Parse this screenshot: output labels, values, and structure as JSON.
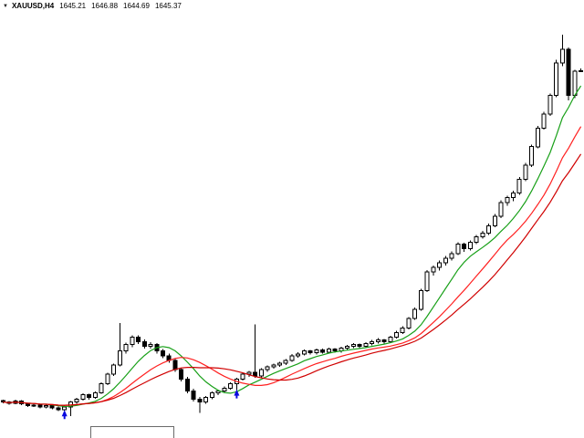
{
  "header": {
    "collapse_icon": "▼",
    "symbol_period": "XAUUSD,H4",
    "quote": {
      "open": "1645.21",
      "high": "1646.88",
      "low": "1644.69",
      "close": "1645.37"
    }
  },
  "colors": {
    "background": "#ffffff",
    "candle_outline": "#000000",
    "bull_fill": "#ffffff",
    "bear_fill": "#000000",
    "ma_fast": "#18a018",
    "ma_mid": "#ff2020",
    "ma_slow": "#d00000",
    "marker_blue": "#0a0adf"
  },
  "chart_data": {
    "type": "candlestick",
    "title": "XAUUSD H4 candlestick chart with moving averages",
    "symbol": "XAUUSD",
    "timeframe": "H4",
    "ylim": [
      1424,
      1688
    ],
    "grid": false,
    "legend": "none",
    "candle_color": "#000000",
    "bull_fill": "#ffffff",
    "bear_fill": "#000000",
    "candles": [
      [
        1446.5,
        1447.2,
        1444.8,
        1445.6
      ],
      [
        1445.6,
        1446.4,
        1444.2,
        1445.0
      ],
      [
        1445.0,
        1447.0,
        1444.4,
        1446.2
      ],
      [
        1446.2,
        1446.8,
        1443.8,
        1444.5
      ],
      [
        1444.5,
        1445.2,
        1442.6,
        1443.4
      ],
      [
        1443.4,
        1444.8,
        1442.8,
        1443.9
      ],
      [
        1443.9,
        1444.4,
        1441.9,
        1442.8
      ],
      [
        1442.8,
        1444.2,
        1442.0,
        1443.4
      ],
      [
        1443.4,
        1443.9,
        1441.3,
        1442.2
      ],
      [
        1442.2,
        1442.9,
        1440.2,
        1441.1
      ],
      [
        1441.1,
        1443.5,
        1440.4,
        1442.8
      ],
      [
        1442.8,
        1446.3,
        1437.2,
        1445.6
      ],
      [
        1445.6,
        1448.1,
        1444.6,
        1447.3
      ],
      [
        1447.3,
        1450.9,
        1446.5,
        1450.1
      ],
      [
        1450.1,
        1450.8,
        1447.2,
        1448.4
      ],
      [
        1448.4,
        1452.0,
        1447.6,
        1451.2
      ],
      [
        1451.2,
        1457.6,
        1450.6,
        1456.8
      ],
      [
        1456.8,
        1463.2,
        1455.9,
        1462.4
      ],
      [
        1462.4,
        1468.9,
        1461.5,
        1468.0
      ],
      [
        1468.0,
        1493.2,
        1467.1,
        1476.4
      ],
      [
        1476.4,
        1481.5,
        1474.9,
        1480.3
      ],
      [
        1480.3,
        1486.0,
        1478.8,
        1484.8
      ],
      [
        1484.8,
        1485.9,
        1480.6,
        1482.0
      ],
      [
        1482.0,
        1483.4,
        1477.8,
        1479.2
      ],
      [
        1479.2,
        1481.8,
        1477.9,
        1480.3
      ],
      [
        1480.3,
        1481.2,
        1474.9,
        1476.4
      ],
      [
        1476.4,
        1477.6,
        1472.2,
        1473.6
      ],
      [
        1473.6,
        1475.0,
        1469.4,
        1470.8
      ],
      [
        1470.8,
        1471.9,
        1463.8,
        1465.2
      ],
      [
        1465.2,
        1466.4,
        1458.2,
        1459.6
      ],
      [
        1459.6,
        1460.8,
        1450.9,
        1452.3
      ],
      [
        1452.3,
        1453.6,
        1445.9,
        1447.3
      ],
      [
        1447.3,
        1448.8,
        1439.0,
        1445.6
      ],
      [
        1445.6,
        1449.2,
        1444.7,
        1448.4
      ],
      [
        1448.4,
        1452.0,
        1447.5,
        1451.2
      ],
      [
        1451.2,
        1453.2,
        1449.8,
        1452.3
      ],
      [
        1452.3,
        1455.0,
        1451.3,
        1454.0
      ],
      [
        1454.0,
        1457.6,
        1453.1,
        1456.8
      ],
      [
        1456.8,
        1460.4,
        1452.8,
        1459.6
      ],
      [
        1459.6,
        1463.2,
        1458.7,
        1462.4
      ],
      [
        1462.4,
        1464.4,
        1460.9,
        1463.5
      ],
      [
        1463.5,
        1492.4,
        1460.3,
        1461.3
      ],
      [
        1461.3,
        1466.0,
        1460.4,
        1465.2
      ],
      [
        1465.2,
        1467.8,
        1464.0,
        1466.9
      ],
      [
        1466.9,
        1468.9,
        1465.8,
        1468.0
      ],
      [
        1468.0,
        1470.0,
        1466.9,
        1469.1
      ],
      [
        1469.1,
        1471.7,
        1468.1,
        1470.8
      ],
      [
        1470.8,
        1474.5,
        1469.9,
        1473.6
      ],
      [
        1473.6,
        1475.6,
        1472.5,
        1474.7
      ],
      [
        1474.7,
        1477.3,
        1473.7,
        1476.4
      ],
      [
        1476.4,
        1477.1,
        1474.3,
        1475.3
      ],
      [
        1475.3,
        1477.9,
        1474.4,
        1477.0
      ],
      [
        1477.0,
        1477.8,
        1474.8,
        1475.8
      ],
      [
        1475.8,
        1478.4,
        1474.9,
        1477.5
      ],
      [
        1477.5,
        1478.2,
        1475.4,
        1476.4
      ],
      [
        1476.4,
        1479.0,
        1475.5,
        1478.1
      ],
      [
        1478.1,
        1480.1,
        1477.1,
        1479.2
      ],
      [
        1479.2,
        1481.2,
        1478.2,
        1480.3
      ],
      [
        1480.3,
        1481.0,
        1478.2,
        1479.2
      ],
      [
        1479.2,
        1481.8,
        1478.3,
        1480.9
      ],
      [
        1480.9,
        1483.0,
        1479.9,
        1482.0
      ],
      [
        1482.0,
        1484.1,
        1481.0,
        1483.1
      ],
      [
        1483.1,
        1483.8,
        1480.9,
        1482.0
      ],
      [
        1482.0,
        1485.7,
        1481.1,
        1484.8
      ],
      [
        1484.8,
        1488.5,
        1483.9,
        1487.6
      ],
      [
        1487.6,
        1491.4,
        1486.7,
        1490.4
      ],
      [
        1490.4,
        1497.0,
        1489.5,
        1496.0
      ],
      [
        1496.0,
        1502.6,
        1495.1,
        1501.6
      ],
      [
        1501.6,
        1513.9,
        1500.7,
        1512.8
      ],
      [
        1512.8,
        1525.1,
        1511.9,
        1524.0
      ],
      [
        1524.0,
        1528.0,
        1521.9,
        1526.8
      ],
      [
        1526.8,
        1531.0,
        1524.8,
        1529.6
      ],
      [
        1529.6,
        1533.7,
        1527.9,
        1532.4
      ],
      [
        1532.4,
        1536.6,
        1530.9,
        1535.2
      ],
      [
        1535.2,
        1542.0,
        1534.2,
        1540.8
      ],
      [
        1540.8,
        1541.8,
        1536.3,
        1538.0
      ],
      [
        1538.0,
        1543.2,
        1537.0,
        1541.9
      ],
      [
        1541.9,
        1546.5,
        1540.9,
        1545.3
      ],
      [
        1545.3,
        1548.8,
        1544.3,
        1547.5
      ],
      [
        1547.5,
        1553.2,
        1546.5,
        1552.0
      ],
      [
        1552.0,
        1558.9,
        1551.0,
        1557.6
      ],
      [
        1557.6,
        1567.3,
        1556.6,
        1566.0
      ],
      [
        1566.0,
        1570.0,
        1563.9,
        1568.8
      ],
      [
        1568.8,
        1573.0,
        1566.8,
        1571.6
      ],
      [
        1571.6,
        1581.3,
        1570.6,
        1580.0
      ],
      [
        1580.0,
        1589.7,
        1578.9,
        1588.4
      ],
      [
        1588.4,
        1600.9,
        1587.4,
        1599.6
      ],
      [
        1599.6,
        1612.1,
        1598.6,
        1610.8
      ],
      [
        1610.8,
        1620.5,
        1609.8,
        1619.2
      ],
      [
        1619.2,
        1631.7,
        1618.2,
        1630.4
      ],
      [
        1630.4,
        1652.0,
        1629.4,
        1650.0
      ],
      [
        1650.0,
        1667.0,
        1648.0,
        1658.4
      ],
      [
        1658.4,
        1659.4,
        1627.5,
        1630.4
      ],
      [
        1630.4,
        1646.0,
        1628.9,
        1645.2
      ],
      [
        1645.21,
        1646.88,
        1644.69,
        1645.37
      ]
    ],
    "indicators": [
      {
        "name": "ma-fast-green",
        "type": "sma",
        "period": 8,
        "color": "#18a018"
      },
      {
        "name": "ma-mid-red",
        "type": "sma",
        "period": 14,
        "color": "#ff2020"
      },
      {
        "name": "ma-slow-red",
        "type": "sma",
        "period": 19,
        "color": "#d00000"
      }
    ],
    "markers": [
      {
        "index": 10,
        "price": 1438.2,
        "shape": "up-arrow",
        "color": "#0a0adf"
      },
      {
        "index": 38,
        "price": 1450.6,
        "shape": "up-arrow",
        "color": "#0a0adf"
      }
    ]
  },
  "footer": {
    "box_visible": true
  }
}
